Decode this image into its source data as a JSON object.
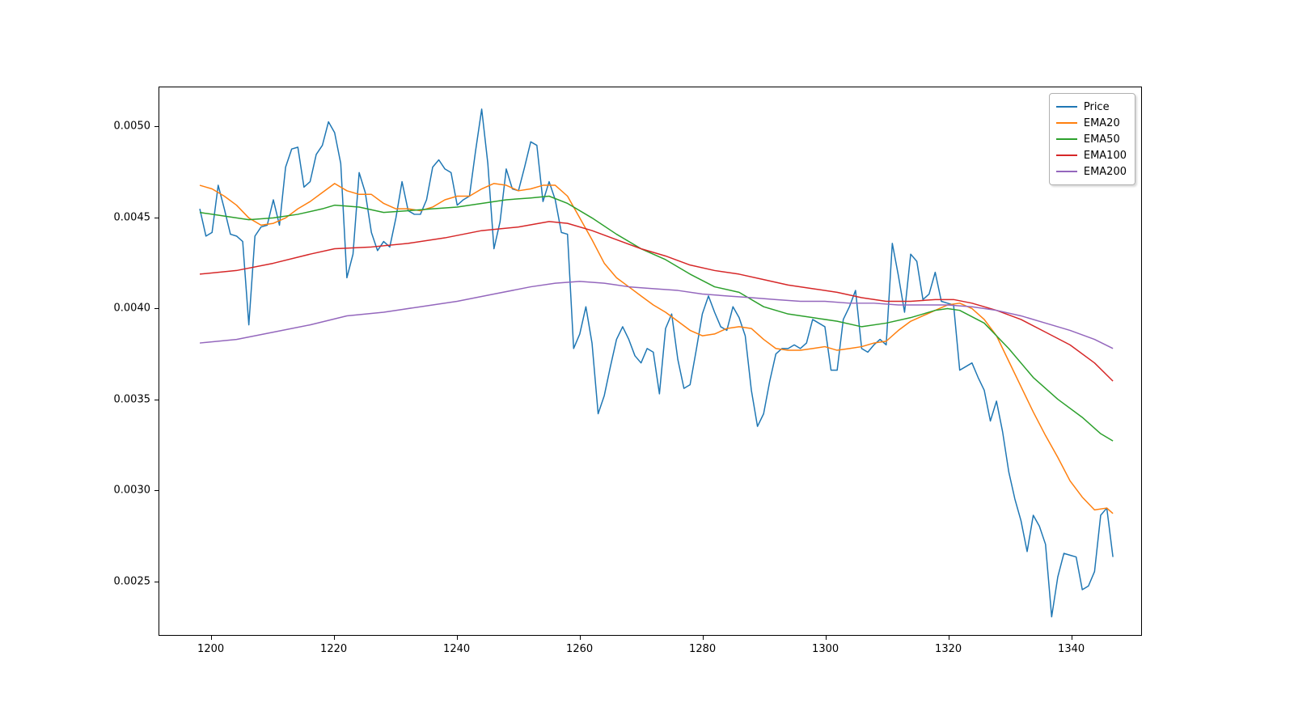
{
  "figure": {
    "background": "#ffffff"
  },
  "chart_data": {
    "type": "line",
    "title": "",
    "xlabel": "",
    "ylabel": "",
    "grid": false,
    "xlim": [
      1191.5,
      1351.5
    ],
    "ylim": [
      0.0022,
      0.00522
    ],
    "x_ticks": [
      1200,
      1220,
      1240,
      1260,
      1280,
      1300,
      1320,
      1340
    ],
    "x_tick_labels": [
      "1200",
      "1220",
      "1240",
      "1260",
      "1280",
      "1300",
      "1320",
      "1340"
    ],
    "y_ticks": [
      0.0025,
      0.003,
      0.0035,
      0.004,
      0.0045,
      0.005
    ],
    "y_tick_labels": [
      "0.0025",
      "0.0030",
      "0.0035",
      "0.0040",
      "0.0045",
      "0.0050"
    ],
    "legend": {
      "position": "upper right",
      "entries": [
        "Price",
        "EMA20",
        "EMA50",
        "EMA100",
        "EMA200"
      ]
    },
    "series": [
      {
        "name": "Price",
        "color": "#1f77b4",
        "x_start": 1198,
        "x_step": 1,
        "values": [
          0.00455,
          0.0044,
          0.00442,
          0.00468,
          0.00455,
          0.00441,
          0.0044,
          0.00437,
          0.00391,
          0.0044,
          0.00445,
          0.00446,
          0.0046,
          0.00446,
          0.00478,
          0.00488,
          0.00489,
          0.00467,
          0.0047,
          0.00485,
          0.0049,
          0.00503,
          0.00497,
          0.0048,
          0.00417,
          0.0043,
          0.00475,
          0.00464,
          0.00442,
          0.00432,
          0.00437,
          0.00434,
          0.0045,
          0.0047,
          0.00454,
          0.00452,
          0.00452,
          0.0046,
          0.00478,
          0.00482,
          0.00477,
          0.00475,
          0.00457,
          0.0046,
          0.00462,
          0.00487,
          0.0051,
          0.0048,
          0.00433,
          0.00448,
          0.00477,
          0.00466,
          0.00465,
          0.00478,
          0.00492,
          0.0049,
          0.00459,
          0.0047,
          0.0046,
          0.00442,
          0.00441,
          0.00378,
          0.00386,
          0.00401,
          0.00381,
          0.00342,
          0.00352,
          0.00368,
          0.00383,
          0.0039,
          0.00383,
          0.00374,
          0.0037,
          0.00378,
          0.00376,
          0.00353,
          0.00389,
          0.00397,
          0.00372,
          0.00356,
          0.00358,
          0.00377,
          0.00397,
          0.00407,
          0.00398,
          0.0039,
          0.00388,
          0.00401,
          0.00395,
          0.00385,
          0.00355,
          0.00335,
          0.00342,
          0.0036,
          0.00375,
          0.00378,
          0.00378,
          0.0038,
          0.00378,
          0.00381,
          0.00394,
          0.00392,
          0.0039,
          0.00366,
          0.00366,
          0.00394,
          0.00401,
          0.0041,
          0.00378,
          0.00376,
          0.0038,
          0.00383,
          0.0038,
          0.00436,
          0.00418,
          0.00398,
          0.0043,
          0.00426,
          0.00405,
          0.00408,
          0.0042,
          0.00404,
          0.00403,
          0.00402,
          0.00366,
          0.00368,
          0.0037,
          0.00362,
          0.00355,
          0.00338,
          0.00349,
          0.00332,
          0.0031,
          0.00295,
          0.00283,
          0.00266,
          0.00286,
          0.0028,
          0.0027,
          0.0023,
          0.00252,
          0.00265,
          0.00264,
          0.00263,
          0.00245,
          0.00247,
          0.00255,
          0.00286,
          0.0029,
          0.00263
        ]
      },
      {
        "name": "EMA20",
        "color": "#ff7f0e",
        "points": [
          [
            1198,
            0.00468
          ],
          [
            1200,
            0.00466
          ],
          [
            1202,
            0.00462
          ],
          [
            1204,
            0.00457
          ],
          [
            1206,
            0.0045
          ],
          [
            1208,
            0.00446
          ],
          [
            1210,
            0.00447
          ],
          [
            1212,
            0.0045
          ],
          [
            1214,
            0.00455
          ],
          [
            1216,
            0.00459
          ],
          [
            1218,
            0.00464
          ],
          [
            1220,
            0.00469
          ],
          [
            1222,
            0.00465
          ],
          [
            1224,
            0.00463
          ],
          [
            1226,
            0.00463
          ],
          [
            1228,
            0.00458
          ],
          [
            1230,
            0.00455
          ],
          [
            1232,
            0.00455
          ],
          [
            1234,
            0.00454
          ],
          [
            1236,
            0.00456
          ],
          [
            1238,
            0.0046
          ],
          [
            1240,
            0.00462
          ],
          [
            1242,
            0.00462
          ],
          [
            1244,
            0.00466
          ],
          [
            1246,
            0.00469
          ],
          [
            1248,
            0.00468
          ],
          [
            1250,
            0.00465
          ],
          [
            1252,
            0.00466
          ],
          [
            1254,
            0.00468
          ],
          [
            1256,
            0.00468
          ],
          [
            1258,
            0.00462
          ],
          [
            1260,
            0.0045
          ],
          [
            1262,
            0.00438
          ],
          [
            1264,
            0.00425
          ],
          [
            1266,
            0.00417
          ],
          [
            1268,
            0.00412
          ],
          [
            1270,
            0.00407
          ],
          [
            1272,
            0.00402
          ],
          [
            1274,
            0.00398
          ],
          [
            1276,
            0.00393
          ],
          [
            1278,
            0.00388
          ],
          [
            1280,
            0.00385
          ],
          [
            1282,
            0.00386
          ],
          [
            1284,
            0.00389
          ],
          [
            1286,
            0.0039
          ],
          [
            1288,
            0.00389
          ],
          [
            1290,
            0.00383
          ],
          [
            1292,
            0.00378
          ],
          [
            1294,
            0.00377
          ],
          [
            1296,
            0.00377
          ],
          [
            1298,
            0.00378
          ],
          [
            1300,
            0.00379
          ],
          [
            1302,
            0.00377
          ],
          [
            1304,
            0.00378
          ],
          [
            1306,
            0.00379
          ],
          [
            1308,
            0.00381
          ],
          [
            1310,
            0.00382
          ],
          [
            1312,
            0.00388
          ],
          [
            1314,
            0.00393
          ],
          [
            1316,
            0.00396
          ],
          [
            1318,
            0.00399
          ],
          [
            1320,
            0.00402
          ],
          [
            1322,
            0.00403
          ],
          [
            1324,
            0.004
          ],
          [
            1326,
            0.00394
          ],
          [
            1328,
            0.00385
          ],
          [
            1330,
            0.00371
          ],
          [
            1332,
            0.00357
          ],
          [
            1334,
            0.00343
          ],
          [
            1336,
            0.0033
          ],
          [
            1338,
            0.00318
          ],
          [
            1340,
            0.00305
          ],
          [
            1342,
            0.00296
          ],
          [
            1344,
            0.00289
          ],
          [
            1346,
            0.0029
          ],
          [
            1347,
            0.00287
          ]
        ]
      },
      {
        "name": "EMA50",
        "color": "#2ca02c",
        "points": [
          [
            1198,
            0.00453
          ],
          [
            1202,
            0.00451
          ],
          [
            1206,
            0.00449
          ],
          [
            1210,
            0.0045
          ],
          [
            1214,
            0.00452
          ],
          [
            1218,
            0.00455
          ],
          [
            1220,
            0.00457
          ],
          [
            1224,
            0.00456
          ],
          [
            1228,
            0.00453
          ],
          [
            1232,
            0.00454
          ],
          [
            1236,
            0.00455
          ],
          [
            1240,
            0.00456
          ],
          [
            1244,
            0.00458
          ],
          [
            1248,
            0.0046
          ],
          [
            1252,
            0.00461
          ],
          [
            1255,
            0.00462
          ],
          [
            1258,
            0.00458
          ],
          [
            1262,
            0.0045
          ],
          [
            1266,
            0.00441
          ],
          [
            1270,
            0.00433
          ],
          [
            1274,
            0.00427
          ],
          [
            1278,
            0.00419
          ],
          [
            1282,
            0.00412
          ],
          [
            1286,
            0.00409
          ],
          [
            1290,
            0.00401
          ],
          [
            1294,
            0.00397
          ],
          [
            1298,
            0.00395
          ],
          [
            1302,
            0.00393
          ],
          [
            1306,
            0.0039
          ],
          [
            1310,
            0.00392
          ],
          [
            1314,
            0.00395
          ],
          [
            1318,
            0.00399
          ],
          [
            1320,
            0.004
          ],
          [
            1322,
            0.00399
          ],
          [
            1326,
            0.00392
          ],
          [
            1330,
            0.00378
          ],
          [
            1334,
            0.00362
          ],
          [
            1338,
            0.0035
          ],
          [
            1342,
            0.0034
          ],
          [
            1345,
            0.00331
          ],
          [
            1347,
            0.00327
          ]
        ]
      },
      {
        "name": "EMA100",
        "color": "#d62728",
        "points": [
          [
            1198,
            0.00419
          ],
          [
            1204,
            0.00421
          ],
          [
            1210,
            0.00425
          ],
          [
            1216,
            0.0043
          ],
          [
            1220,
            0.00433
          ],
          [
            1226,
            0.00434
          ],
          [
            1232,
            0.00436
          ],
          [
            1238,
            0.00439
          ],
          [
            1244,
            0.00443
          ],
          [
            1250,
            0.00445
          ],
          [
            1255,
            0.00448
          ],
          [
            1258,
            0.00447
          ],
          [
            1262,
            0.00443
          ],
          [
            1266,
            0.00438
          ],
          [
            1270,
            0.00433
          ],
          [
            1274,
            0.00429
          ],
          [
            1278,
            0.00424
          ],
          [
            1282,
            0.00421
          ],
          [
            1286,
            0.00419
          ],
          [
            1290,
            0.00416
          ],
          [
            1294,
            0.00413
          ],
          [
            1298,
            0.00411
          ],
          [
            1302,
            0.00409
          ],
          [
            1306,
            0.00406
          ],
          [
            1310,
            0.00404
          ],
          [
            1314,
            0.00404
          ],
          [
            1318,
            0.00405
          ],
          [
            1321,
            0.00405
          ],
          [
            1324,
            0.00403
          ],
          [
            1328,
            0.00399
          ],
          [
            1332,
            0.00394
          ],
          [
            1336,
            0.00387
          ],
          [
            1340,
            0.0038
          ],
          [
            1344,
            0.0037
          ],
          [
            1347,
            0.0036
          ]
        ]
      },
      {
        "name": "EMA200",
        "color": "#9467bd",
        "points": [
          [
            1198,
            0.00381
          ],
          [
            1204,
            0.00383
          ],
          [
            1210,
            0.00387
          ],
          [
            1216,
            0.00391
          ],
          [
            1222,
            0.00396
          ],
          [
            1228,
            0.00398
          ],
          [
            1234,
            0.00401
          ],
          [
            1240,
            0.00404
          ],
          [
            1246,
            0.00408
          ],
          [
            1252,
            0.00412
          ],
          [
            1256,
            0.00414
          ],
          [
            1260,
            0.00415
          ],
          [
            1264,
            0.00414
          ],
          [
            1268,
            0.00412
          ],
          [
            1272,
            0.00411
          ],
          [
            1276,
            0.0041
          ],
          [
            1280,
            0.00408
          ],
          [
            1284,
            0.00407
          ],
          [
            1288,
            0.00406
          ],
          [
            1292,
            0.00405
          ],
          [
            1296,
            0.00404
          ],
          [
            1300,
            0.00404
          ],
          [
            1304,
            0.00403
          ],
          [
            1308,
            0.00403
          ],
          [
            1312,
            0.00402
          ],
          [
            1316,
            0.00402
          ],
          [
            1320,
            0.00402
          ],
          [
            1324,
            0.00401
          ],
          [
            1328,
            0.00399
          ],
          [
            1332,
            0.00396
          ],
          [
            1336,
            0.00392
          ],
          [
            1340,
            0.00388
          ],
          [
            1344,
            0.00383
          ],
          [
            1347,
            0.00378
          ]
        ]
      }
    ]
  }
}
